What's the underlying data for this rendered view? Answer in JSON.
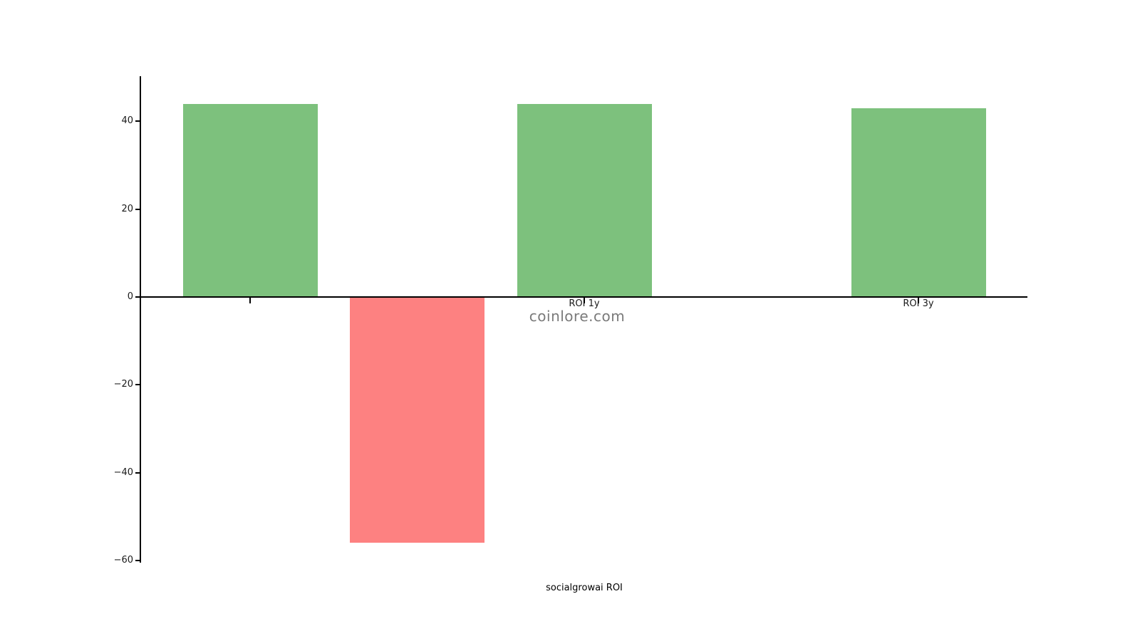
{
  "chart": {
    "watermark": "coinlore.com",
    "title": "socialgrowai ROI"
  },
  "chart_data": {
    "type": "bar",
    "title": "socialgrowai ROI",
    "watermark": "coinlore.com",
    "categories": [
      "",
      "",
      "ROI 1y",
      "",
      "ROI 3y"
    ],
    "values": [
      44,
      -56,
      44,
      null,
      43
    ],
    "x_ticks_visible": [
      {
        "slot": 0,
        "label": ""
      },
      {
        "slot": 2,
        "label": "ROI 1y"
      },
      {
        "slot": 4,
        "label": "ROI 3y"
      }
    ],
    "y_axis": {
      "ticks": [
        40,
        20,
        0,
        -20,
        -40,
        -60
      ],
      "tick_labels": [
        "40",
        "20",
        "0",
        "−20",
        "−40",
        "−60"
      ],
      "ylim": [
        -63,
        50
      ]
    },
    "xlabel": "socialgrowai ROI",
    "ylabel": "",
    "grid": false,
    "legend": false,
    "colors": {
      "positive": "#7dc17d",
      "negative": "#fd8181",
      "axis": "#000000",
      "tick_text": "#1a1a1a",
      "watermark": "#7a7a7a",
      "background": "#ffffff"
    }
  }
}
